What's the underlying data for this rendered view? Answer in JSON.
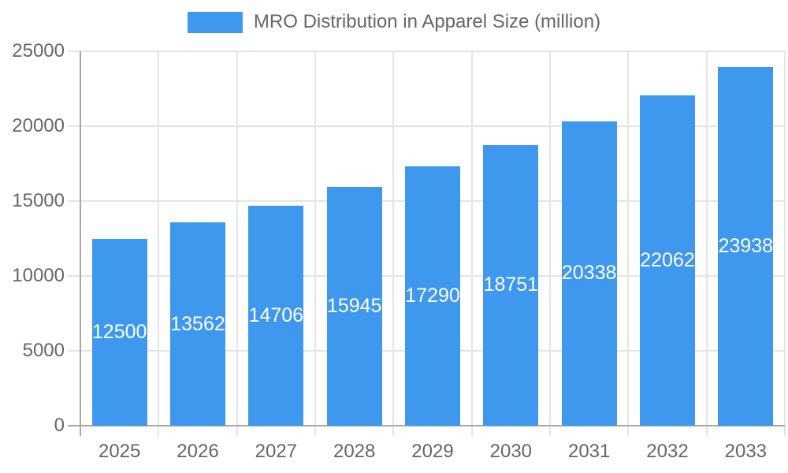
{
  "chart_data": {
    "type": "bar",
    "title": "MRO Distribution in Apparel Size (million)",
    "legend_position": "top",
    "categories": [
      "2025",
      "2026",
      "2027",
      "2028",
      "2029",
      "2030",
      "2031",
      "2032",
      "2033"
    ],
    "series": [
      {
        "name": "MRO Distribution in Apparel Size (million)",
        "values": [
          12500,
          13562,
          14706,
          15945,
          17290,
          18751,
          20338,
          22062,
          23938
        ],
        "color": "#3E99EE"
      }
    ],
    "xlabel": "",
    "ylabel": "",
    "ylim": [
      0,
      25000
    ],
    "y_ticks": [
      0,
      5000,
      10000,
      15000,
      20000,
      25000
    ],
    "grid": true,
    "value_labels": {
      "show": true,
      "position": "center",
      "color": "#ffffff"
    },
    "colors": {
      "text": "#666666",
      "grid": "#e5e5e5",
      "axis": "#a8a8a8",
      "background": "#ffffff"
    }
  }
}
